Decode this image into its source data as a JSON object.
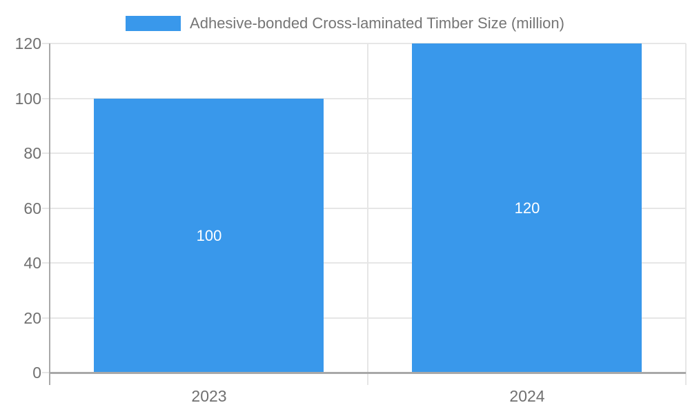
{
  "chart_data": {
    "type": "bar",
    "title": "Adhesive-bonded Cross-laminated Timber Size (million)",
    "categories": [
      "2023",
      "2024"
    ],
    "series": [
      {
        "name": "Adhesive-bonded Cross-laminated Timber Size (million)",
        "values": [
          100,
          120
        ]
      }
    ],
    "data_labels": [
      "100",
      "120"
    ],
    "xlabel": "",
    "ylabel": "",
    "ylim": [
      0,
      120
    ],
    "yticks": [
      0,
      20,
      40,
      60,
      80,
      100,
      120
    ],
    "grid": true,
    "legend_position": "top-center",
    "colors": {
      "bar": "#3998EB",
      "axis_line": "#A8A8A8",
      "gridline": "#E6E6E6",
      "tick_label": "#707070",
      "legend_text": "#757575",
      "data_label": "#FFFFFF",
      "background": "#FFFFFF"
    }
  }
}
